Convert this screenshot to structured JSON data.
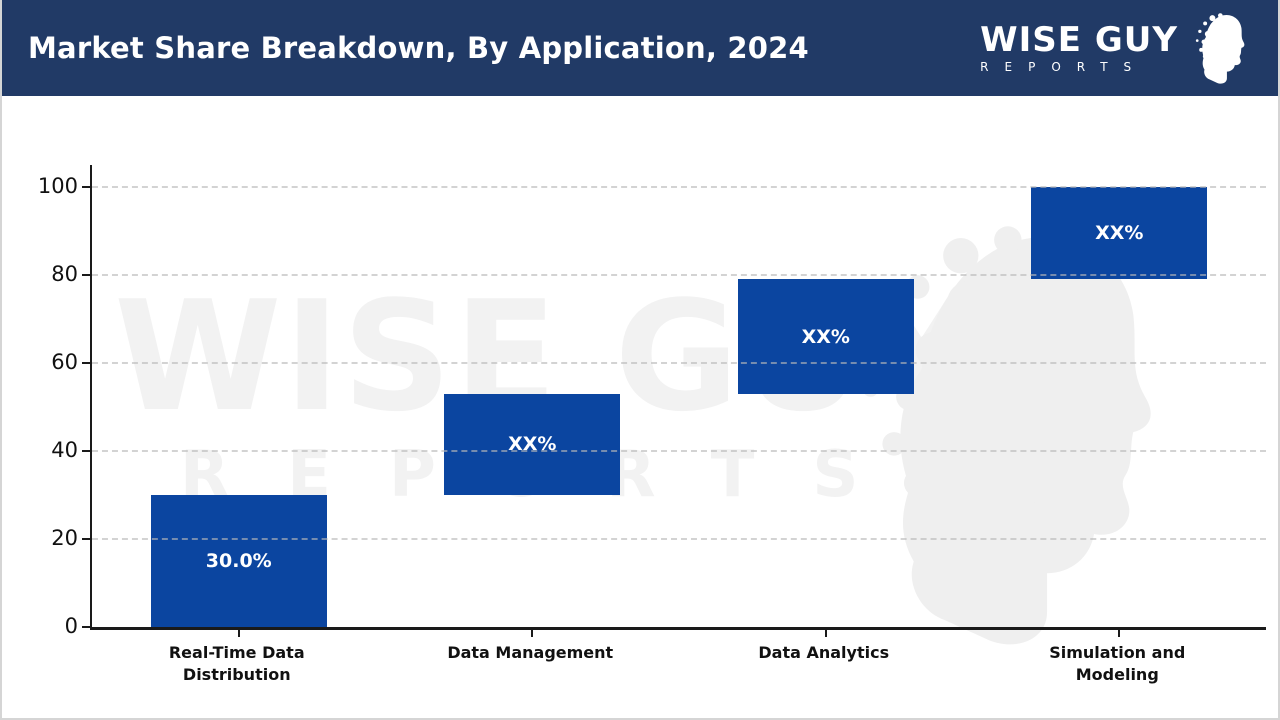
{
  "header": {
    "title": "Market Share Breakdown, By Application, 2024",
    "logo": {
      "wordmark": "WISE GUY",
      "subtext": "REPORTS",
      "head_icon": "dotted-face-profile"
    },
    "background_color": "#213a66"
  },
  "watermark": {
    "wordmark": "WISE GUY",
    "subtext": "REPORTS",
    "color": "#f2f2f2"
  },
  "chart_data": {
    "type": "bar",
    "subtype": "waterfall",
    "title": "Market Share Breakdown, By Application, 2024",
    "categories": [
      "Real-Time Data Distribution",
      "Data Management",
      "Data Analytics",
      "Simulation and Modeling"
    ],
    "segments": [
      {
        "category": "Real-Time Data Distribution",
        "start": 0,
        "end": 30,
        "label": "30.0%"
      },
      {
        "category": "Data Management",
        "start": 30,
        "end": 53,
        "label": "XX%"
      },
      {
        "category": "Data Analytics",
        "start": 53,
        "end": 79,
        "label": "XX%"
      },
      {
        "category": "Simulation and Modeling",
        "start": 79,
        "end": 100,
        "label": "XX%"
      }
    ],
    "yticks": [
      0,
      20,
      40,
      60,
      80,
      100
    ],
    "ylim": [
      0,
      105
    ],
    "xlabel": "",
    "ylabel": "",
    "grid": "horizontal-dashed",
    "grid_color": "#d9d9d9",
    "legend": "none",
    "bar_color": "#0b45a0",
    "bar_label_color": "#ffffff",
    "axis_color": "#1a1a1a"
  }
}
